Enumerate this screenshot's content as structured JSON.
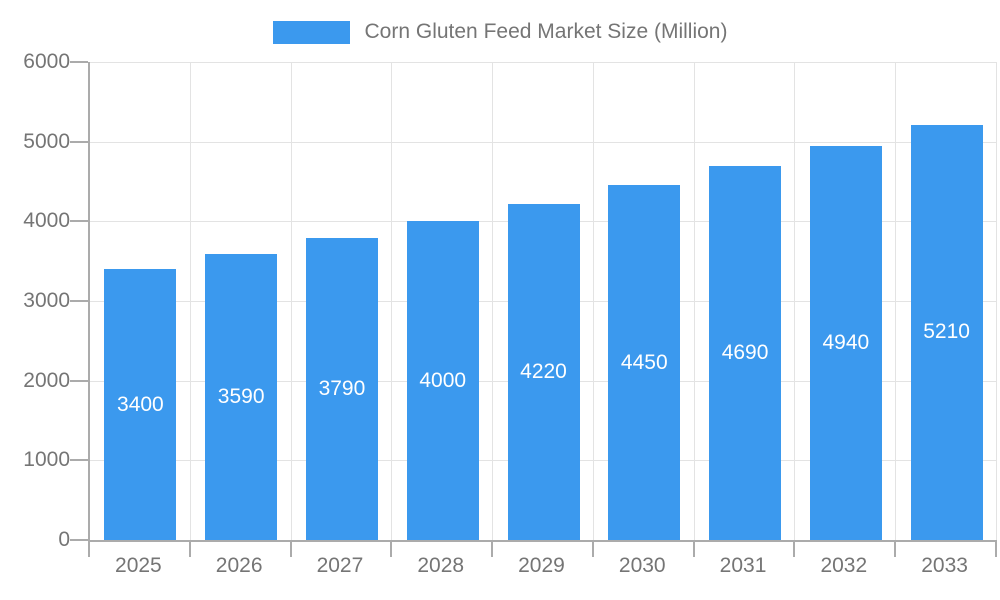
{
  "legend": {
    "label": "Corn Gluten Feed Market Size (Million)"
  },
  "chart_data": {
    "type": "bar",
    "title": "Corn Gluten Feed Market Size (Million)",
    "categories": [
      "2025",
      "2026",
      "2027",
      "2028",
      "2029",
      "2030",
      "2031",
      "2032",
      "2033"
    ],
    "values": [
      3400,
      3590,
      3790,
      4000,
      4220,
      4450,
      4690,
      4940,
      5210
    ],
    "xlabel": "",
    "ylabel": "",
    "ylim": [
      0,
      6000
    ],
    "yticks": [
      0,
      1000,
      2000,
      3000,
      4000,
      5000,
      6000
    ],
    "grid": true,
    "legend_position": "top-center",
    "bar_labels_inside": true,
    "colors": {
      "bar": "#3b99ee",
      "bar_label": "#ffffff",
      "axis_text": "#757575",
      "axis_line": "#ababab",
      "gridline": "#e3e3e3",
      "background": "#ffffff"
    }
  }
}
